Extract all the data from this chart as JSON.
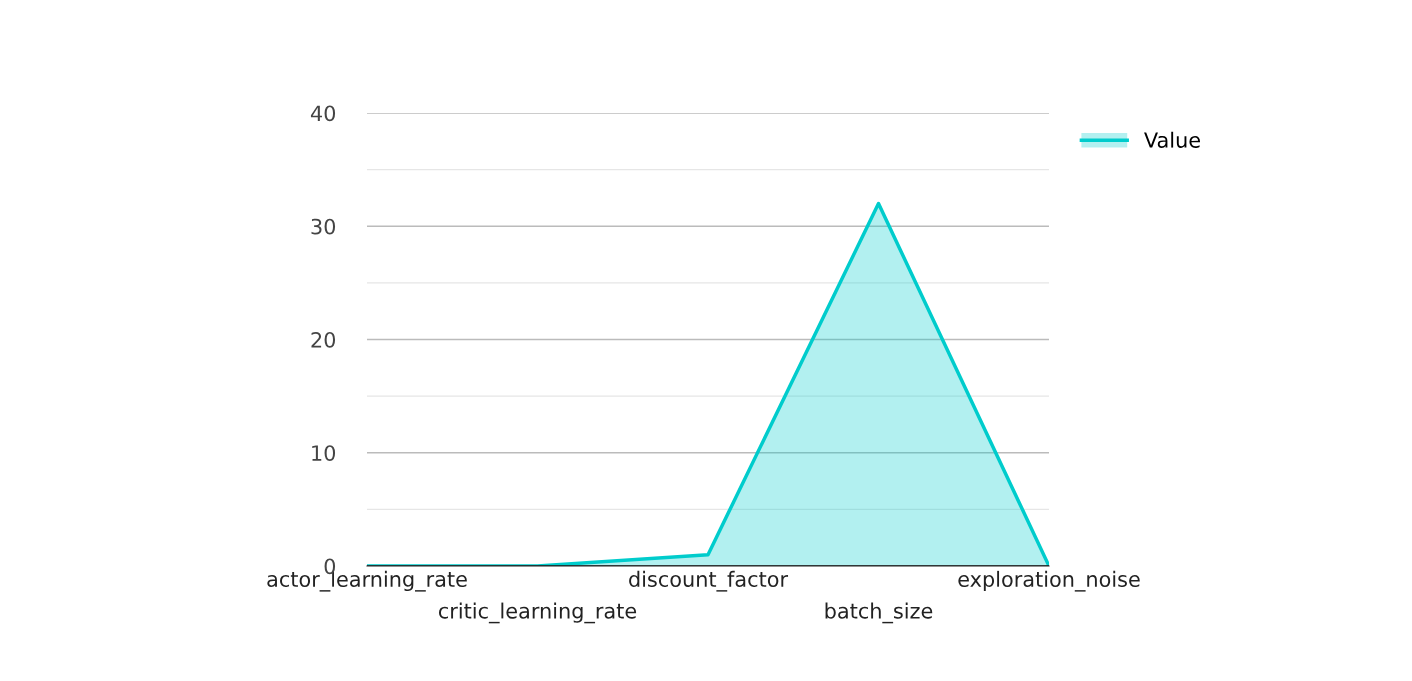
{
  "chart_data": {
    "type": "area",
    "categories": [
      "actor_learning_rate",
      "critic_learning_rate",
      "discount_factor",
      "batch_size",
      "exploration_noise"
    ],
    "series": [
      {
        "name": "Value",
        "color": "#00cccc",
        "values": [
          0,
          0,
          1,
          32,
          0
        ]
      }
    ],
    "ylim": [
      0,
      40
    ],
    "yticks": [
      0,
      {
        "value": 5,
        "label": null
      },
      10,
      {
        "value": 15,
        "label": null
      },
      20,
      {
        "value": 25,
        "label": null
      },
      30,
      {
        "value": 35,
        "label": null
      },
      40
    ],
    "grid": "y",
    "legend": "top right"
  }
}
